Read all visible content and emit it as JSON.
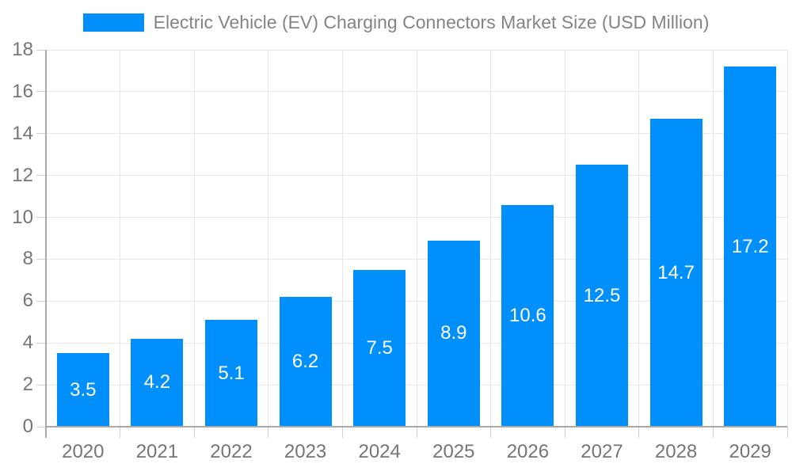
{
  "chart_data": {
    "type": "bar",
    "title": "Electric Vehicle (EV) Charging Connectors Market Size (USD Million)",
    "legend_position": "top",
    "categories": [
      "2020",
      "2021",
      "2022",
      "2023",
      "2024",
      "2025",
      "2026",
      "2027",
      "2028",
      "2029"
    ],
    "series": [
      {
        "name": "Electric Vehicle (EV) Charging Connectors Market Size (USD Million)",
        "values": [
          3.5,
          4.2,
          5.1,
          6.2,
          7.5,
          8.9,
          10.6,
          12.5,
          14.7,
          17.2
        ]
      }
    ],
    "bar_value_labels": [
      "3.5",
      "4.2",
      "5.1",
      "6.2",
      "7.5",
      "8.9",
      "10.6",
      "12.5",
      "14.7",
      "17.2"
    ],
    "xlabel": "",
    "ylabel": "",
    "ylim": [
      0,
      18
    ],
    "y_ticks": [
      0,
      2,
      4,
      6,
      8,
      10,
      12,
      14,
      16,
      18
    ],
    "grid": "both",
    "colors": {
      "bar": "#008FFB",
      "bar_label_text": "#ffffff",
      "axis_text": "#757575",
      "legend_text": "#848484",
      "gridline": "#e7e7e7",
      "axis_line": "#a9a9a9",
      "tick_line": "#cfcfcf",
      "background": "#ffffff"
    }
  }
}
